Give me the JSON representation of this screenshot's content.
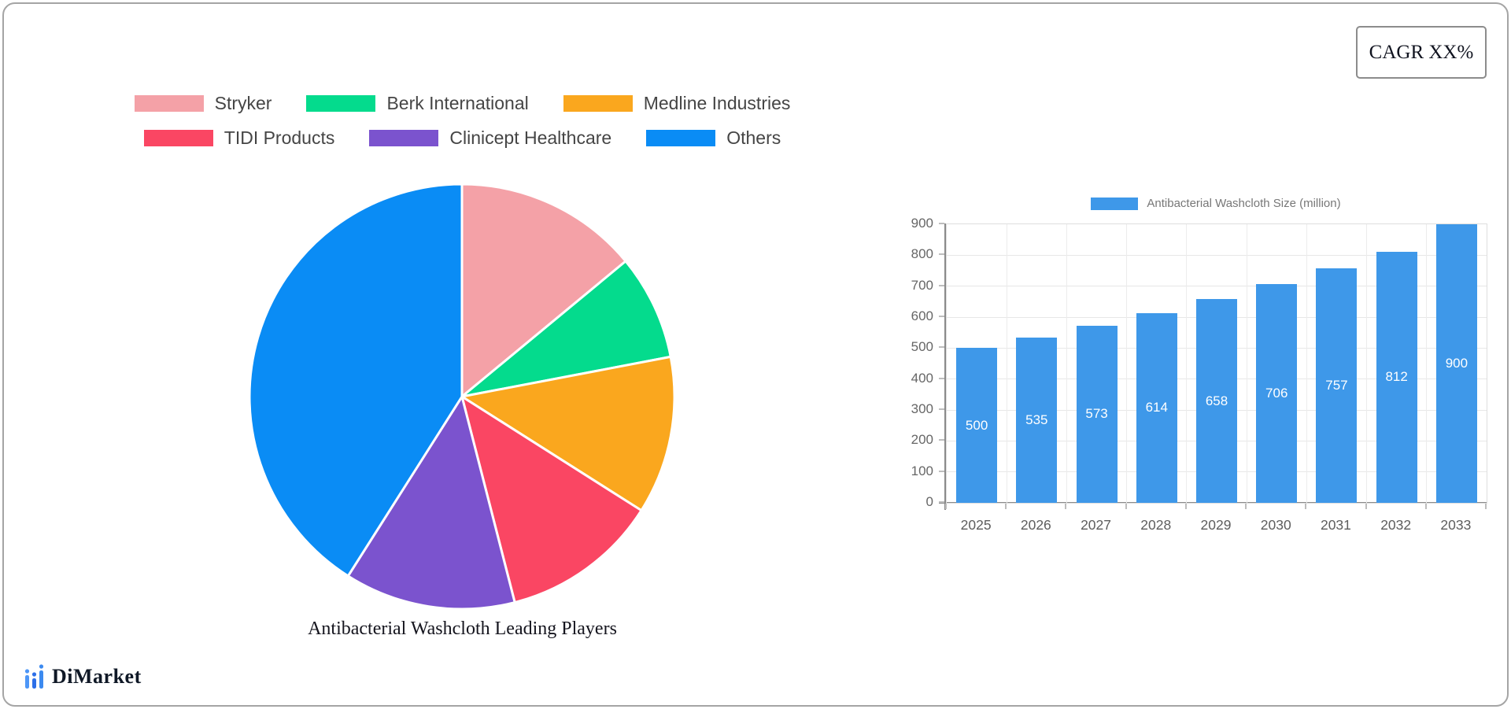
{
  "frame": {
    "cagr_label": "CAGR XX%"
  },
  "brand": {
    "name": "DiMarket"
  },
  "colors": {
    "pie_palette": [
      "#F4A1A7",
      "#04DB8D",
      "#FAA71E",
      "#FA4663",
      "#7B53CE",
      "#0A8CF5"
    ],
    "bar_color": "#3E98E9",
    "axis_text": "#666666",
    "legend_text": "#454545",
    "grid_line": "#E7E7E7",
    "border_gray": "#A5A5A5"
  },
  "chart_data": [
    {
      "type": "pie",
      "title": "Antibacterial Washcloth Leading Players",
      "labels": [
        "Stryker",
        "Berk International",
        "Medline Industries",
        "TIDI Products",
        "Clinicept Healthcare",
        "Others"
      ],
      "values": [
        14,
        8,
        12,
        12,
        13,
        41
      ],
      "colors": [
        "#F4A1A7",
        "#04DB8D",
        "#FAA71E",
        "#FA4663",
        "#7B53CE",
        "#0A8CF5"
      ],
      "legend_position": "top",
      "legend_rows": [
        3,
        3
      ],
      "start_angle_deg": 0,
      "direction": "clockwise",
      "slice_border_color": "#FFFFFF"
    },
    {
      "type": "bar",
      "legend": "Antibacterial Washcloth Size (million)",
      "categories": [
        "2025",
        "2026",
        "2027",
        "2028",
        "2029",
        "2030",
        "2031",
        "2032",
        "2033"
      ],
      "values": [
        500,
        535,
        573,
        614,
        658,
        706,
        757,
        812,
        900
      ],
      "bar_color": "#3E98E9",
      "ylim": [
        0,
        900
      ],
      "ytick_step": 100,
      "grid": true,
      "legend_position": "top",
      "value_labels": {
        "position": "inside-center",
        "color": "#FFFFFF"
      }
    }
  ]
}
